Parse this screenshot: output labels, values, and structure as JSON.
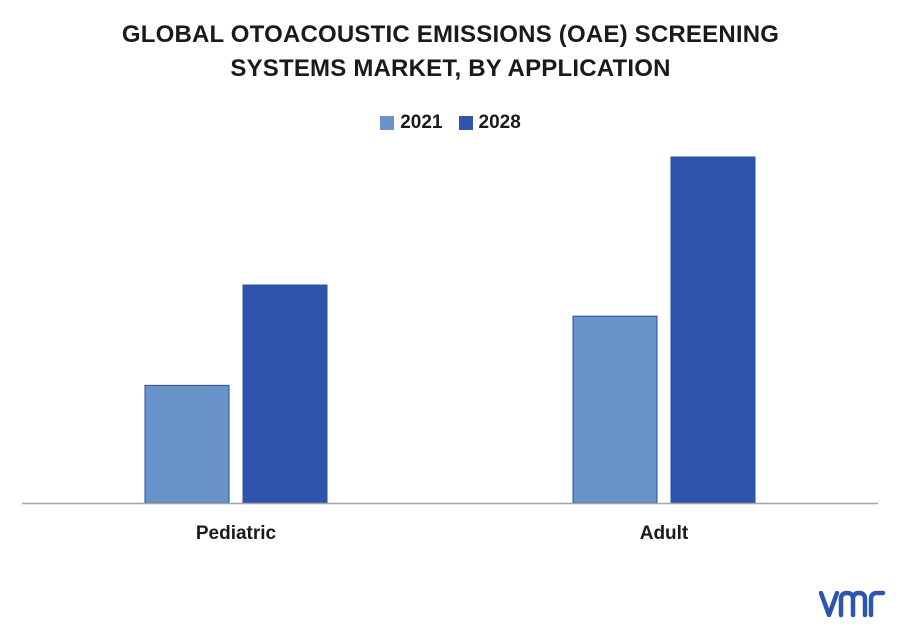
{
  "chart_data": {
    "type": "bar",
    "title_lines": [
      "GLOBAL OTOACOUSTIC EMISSIONS (OAE) SCREENING",
      "SYSTEMS MARKET, BY APPLICATION"
    ],
    "categories": [
      "Pediatric",
      "Adult"
    ],
    "series": [
      {
        "name": "2021",
        "color": "#6a93c9",
        "values": [
          34,
          54
        ]
      },
      {
        "name": "2028",
        "color": "#2f54ad",
        "values": [
          63,
          100
        ]
      }
    ],
    "ylim": [
      0,
      100
    ],
    "grid": false,
    "legend_position": "top-center",
    "xlabel": "",
    "ylabel": ""
  },
  "logo": {
    "name": "vmr-logo",
    "text": "vmr",
    "color": "#2f54ad"
  }
}
